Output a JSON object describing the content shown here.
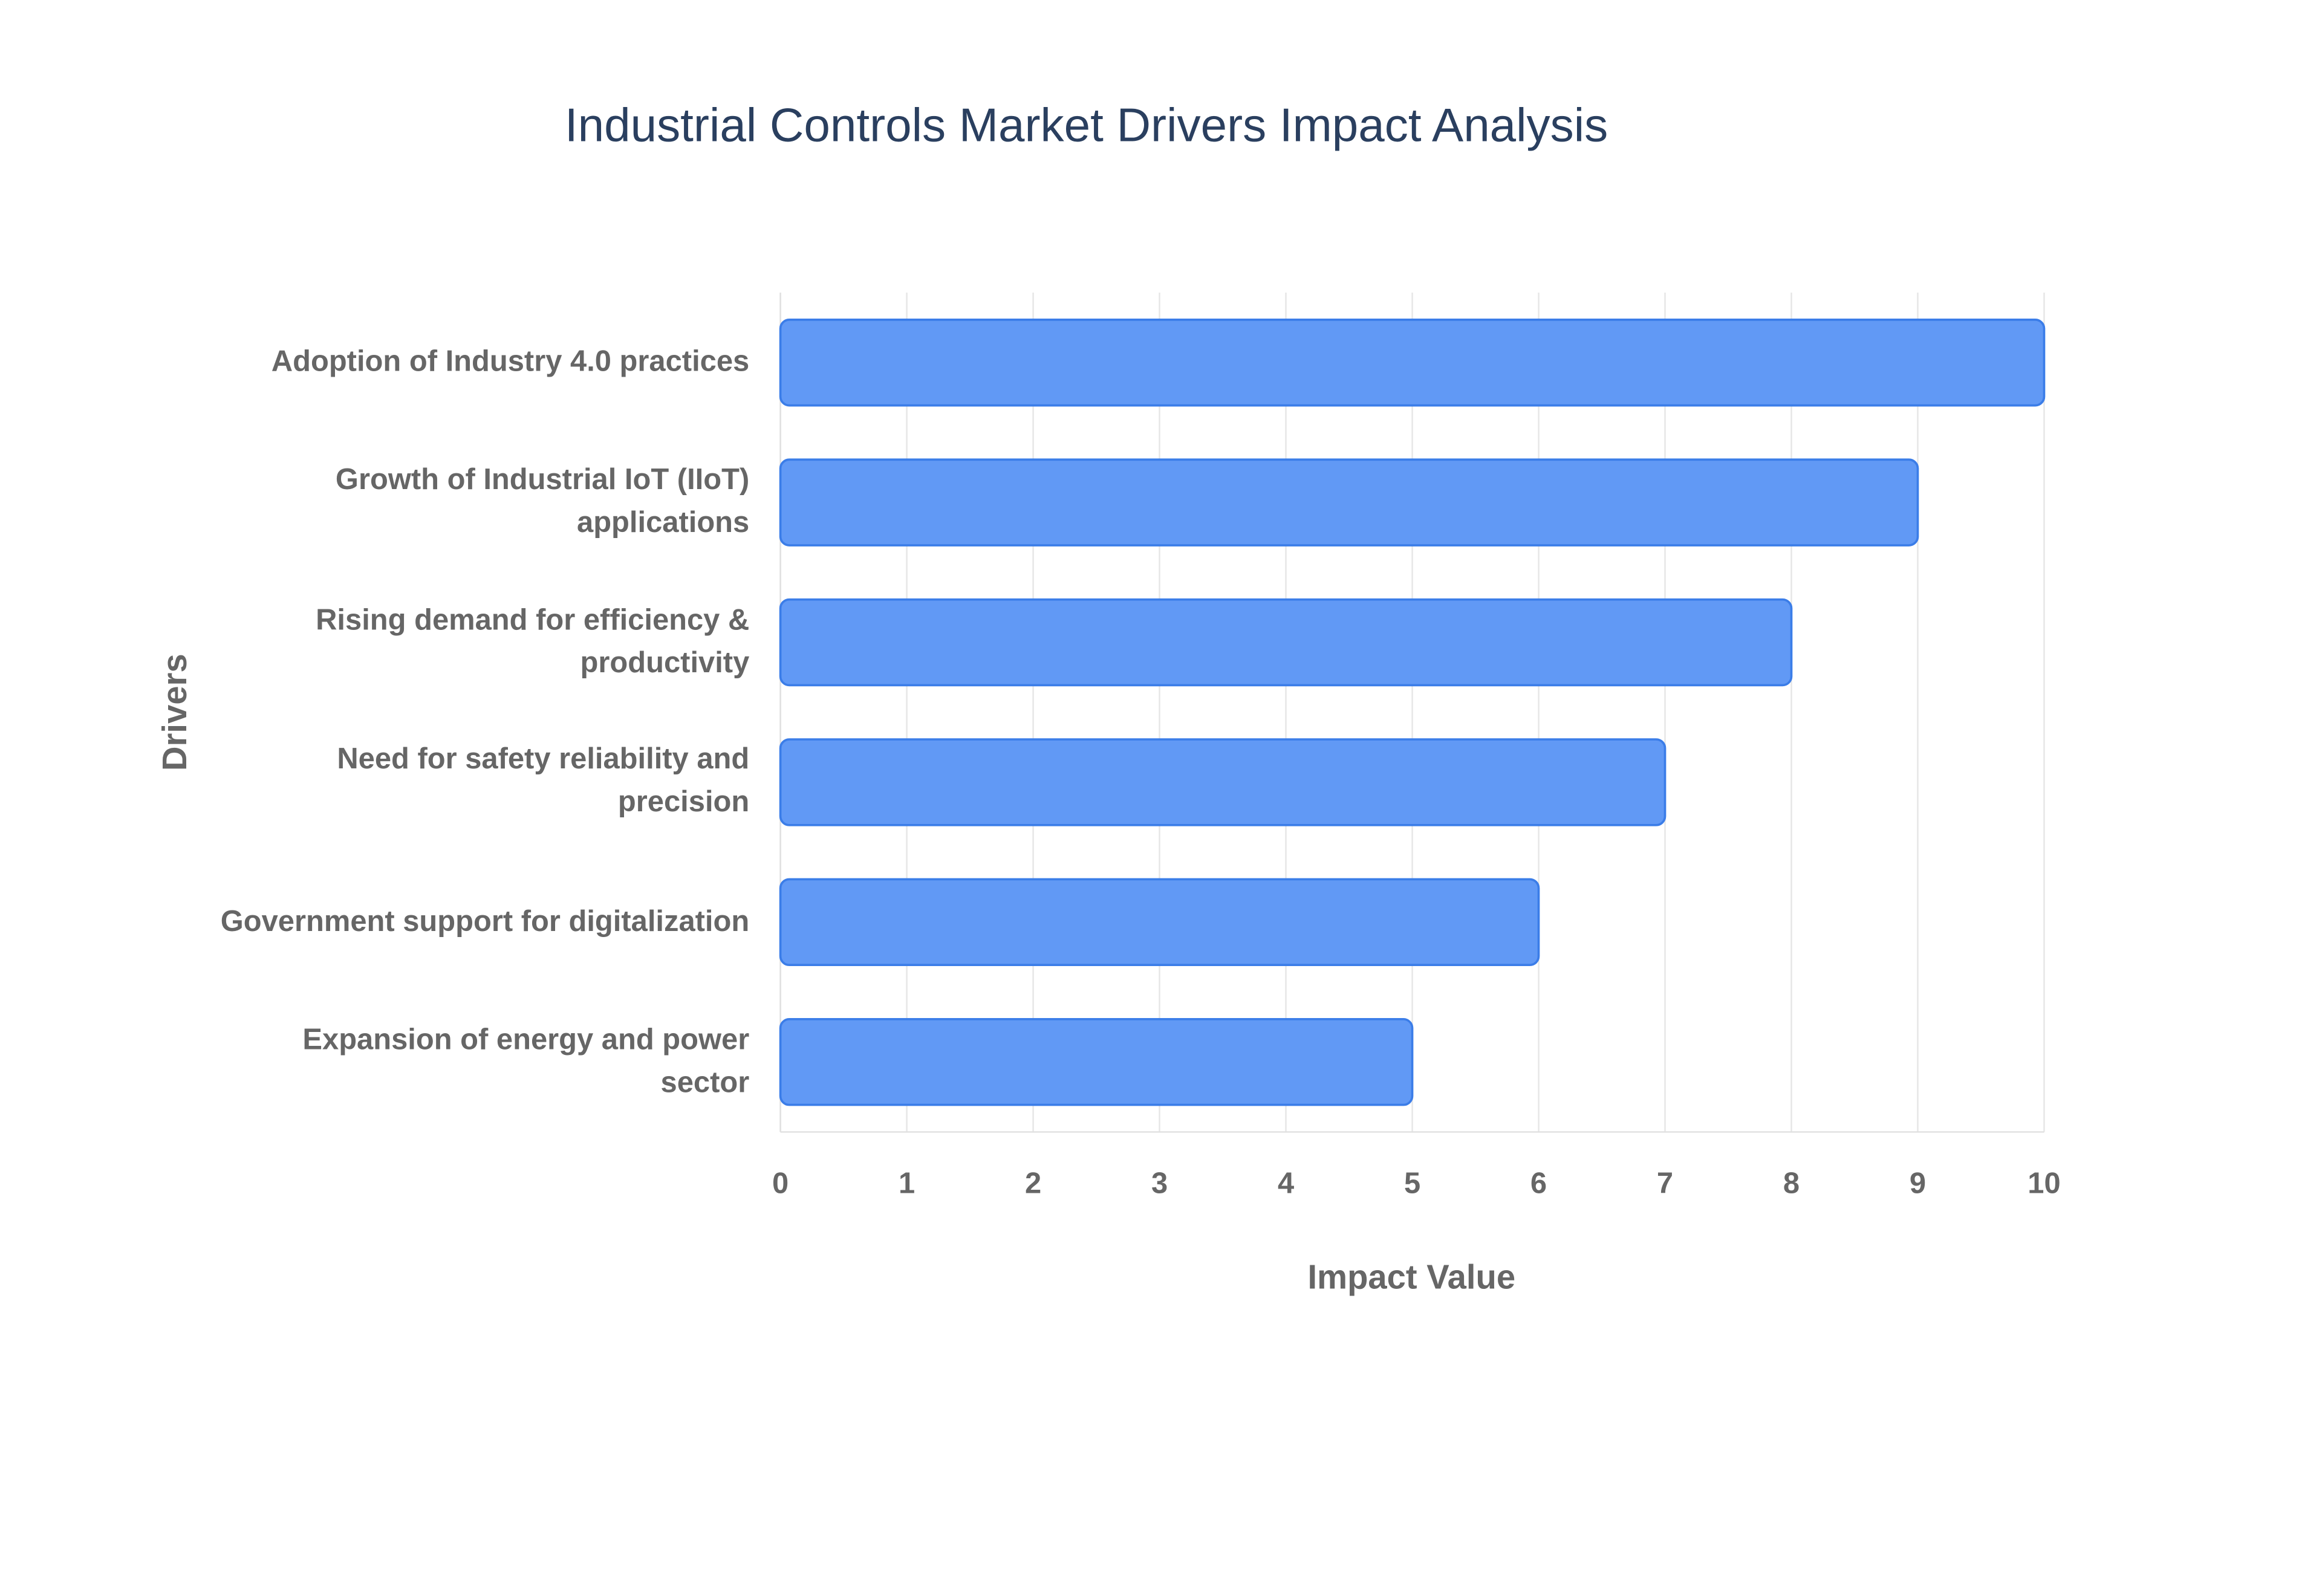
{
  "chart_data": {
    "type": "bar",
    "orientation": "horizontal",
    "title": "Industrial Controls Market Drivers Impact Analysis",
    "x_label": "Impact Value",
    "y_label": "Drivers",
    "categories": [
      "Adoption of Industry 4.0 practices",
      "Growth of Industrial IoT (IIoT) applications",
      "Rising demand for efficiency & productivity",
      "Need for safety reliability and precision",
      "Government support for digitalization",
      "Expansion of energy and power sector"
    ],
    "values": [
      10,
      9,
      8,
      7,
      6,
      5
    ],
    "color": "#6199f5",
    "xlim": [
      0,
      10
    ],
    "xticks": [
      0,
      1,
      2,
      3,
      4,
      5,
      6,
      7,
      8,
      9,
      10
    ],
    "grid": true
  }
}
